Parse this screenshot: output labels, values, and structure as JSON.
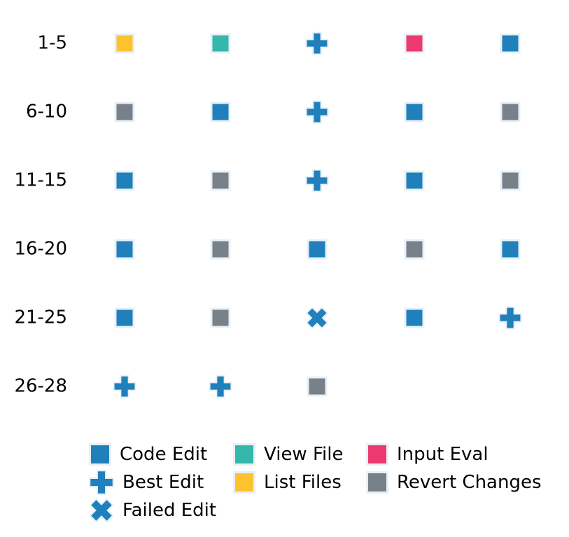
{
  "colors": {
    "blue": "#1F80BC",
    "teal": "#35B7AB",
    "yellow": "#FDC32F",
    "pink": "#ED3A6E",
    "gray": "#78808A",
    "marker_edge": "#E8F0F7",
    "text": "#000000",
    "background": "#FFFFFF"
  },
  "marker_types": {
    "code_edit": {
      "label": "Code Edit",
      "shape": "square",
      "color": "#1F80BC"
    },
    "best_edit": {
      "label": "Best Edit",
      "shape": "plus",
      "color": "#1F80BC"
    },
    "failed_edit": {
      "label": "Failed Edit",
      "shape": "x",
      "color": "#1F80BC"
    },
    "view_file": {
      "label": "View File",
      "shape": "square",
      "color": "#35B7AB"
    },
    "list_files": {
      "label": "List Files",
      "shape": "square",
      "color": "#FDC32F"
    },
    "input_eval": {
      "label": "Input Eval",
      "shape": "square",
      "color": "#ED3A6E"
    },
    "revert_changes": {
      "label": "Revert Changes",
      "shape": "square",
      "color": "#78808A"
    }
  },
  "chart_data": {
    "type": "scatter",
    "title": "",
    "xlabel": "",
    "ylabel": "",
    "grid": false,
    "legend_position": "bottom",
    "columns_per_row": 5,
    "row_labels": [
      "1-5",
      "6-10",
      "11-15",
      "16-20",
      "21-25",
      "26-28"
    ],
    "rows": [
      {
        "label": "1-5",
        "cells": [
          "list_files",
          "view_file",
          "best_edit",
          "input_eval",
          "code_edit"
        ]
      },
      {
        "label": "6-10",
        "cells": [
          "revert_changes",
          "code_edit",
          "best_edit",
          "code_edit",
          "revert_changes"
        ]
      },
      {
        "label": "11-15",
        "cells": [
          "code_edit",
          "revert_changes",
          "best_edit",
          "code_edit",
          "revert_changes"
        ]
      },
      {
        "label": "16-20",
        "cells": [
          "code_edit",
          "revert_changes",
          "code_edit",
          "revert_changes",
          "code_edit"
        ]
      },
      {
        "label": "21-25",
        "cells": [
          "code_edit",
          "revert_changes",
          "failed_edit",
          "code_edit",
          "best_edit"
        ]
      },
      {
        "label": "26-28",
        "cells": [
          "best_edit",
          "best_edit",
          "revert_changes",
          null,
          null
        ]
      }
    ],
    "legend_rows": [
      [
        "code_edit",
        "view_file",
        "input_eval"
      ],
      [
        "best_edit",
        "list_files",
        "revert_changes"
      ],
      [
        "failed_edit"
      ]
    ]
  }
}
